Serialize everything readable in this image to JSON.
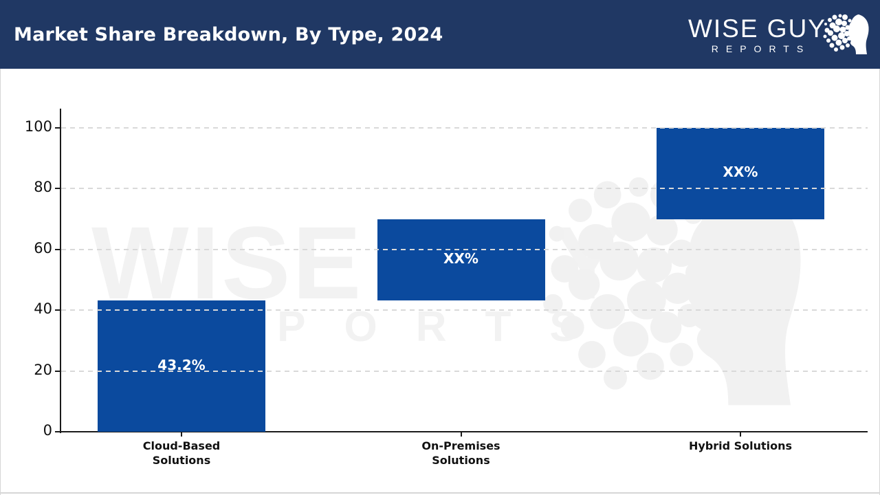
{
  "header": {
    "title": "Market Share Breakdown, By Type, 2024",
    "logo": {
      "line1": "WISE GUY",
      "line2": "REPORTS"
    }
  },
  "watermark": {
    "line1": "WISE GUY",
    "line2": "REPORTS"
  },
  "chart_data": {
    "type": "bar",
    "variant": "floating-segment-waterfall",
    "title": "Market Share Breakdown, By Type, 2024",
    "categories": [
      "Cloud-Based\nSolutions",
      "On-Premises\nSolutions",
      "Hybrid Solutions"
    ],
    "segments": [
      {
        "category": "Cloud-Based Solutions",
        "start": 0,
        "end": 43.2,
        "label": "43.2%"
      },
      {
        "category": "On-Premises Solutions",
        "start": 43.2,
        "end": 70,
        "label": "XX%"
      },
      {
        "category": "Hybrid Solutions",
        "start": 70,
        "end": 100,
        "label": "XX%"
      }
    ],
    "ylim": [
      0,
      100
    ],
    "yticks": [
      0,
      20,
      40,
      60,
      80,
      100
    ],
    "xlabel": "",
    "ylabel": "",
    "grid": "horizontal-dashed",
    "legend": "none",
    "bar_color": "#0b4a9e",
    "bar_label_color": "#ffffff"
  },
  "colors": {
    "header_bg": "#203864",
    "accent_blue": "#0b4a9e",
    "gridline": "#d9d9d9",
    "axis": "#1a1a1a",
    "watermark": "#f2f2f2"
  }
}
